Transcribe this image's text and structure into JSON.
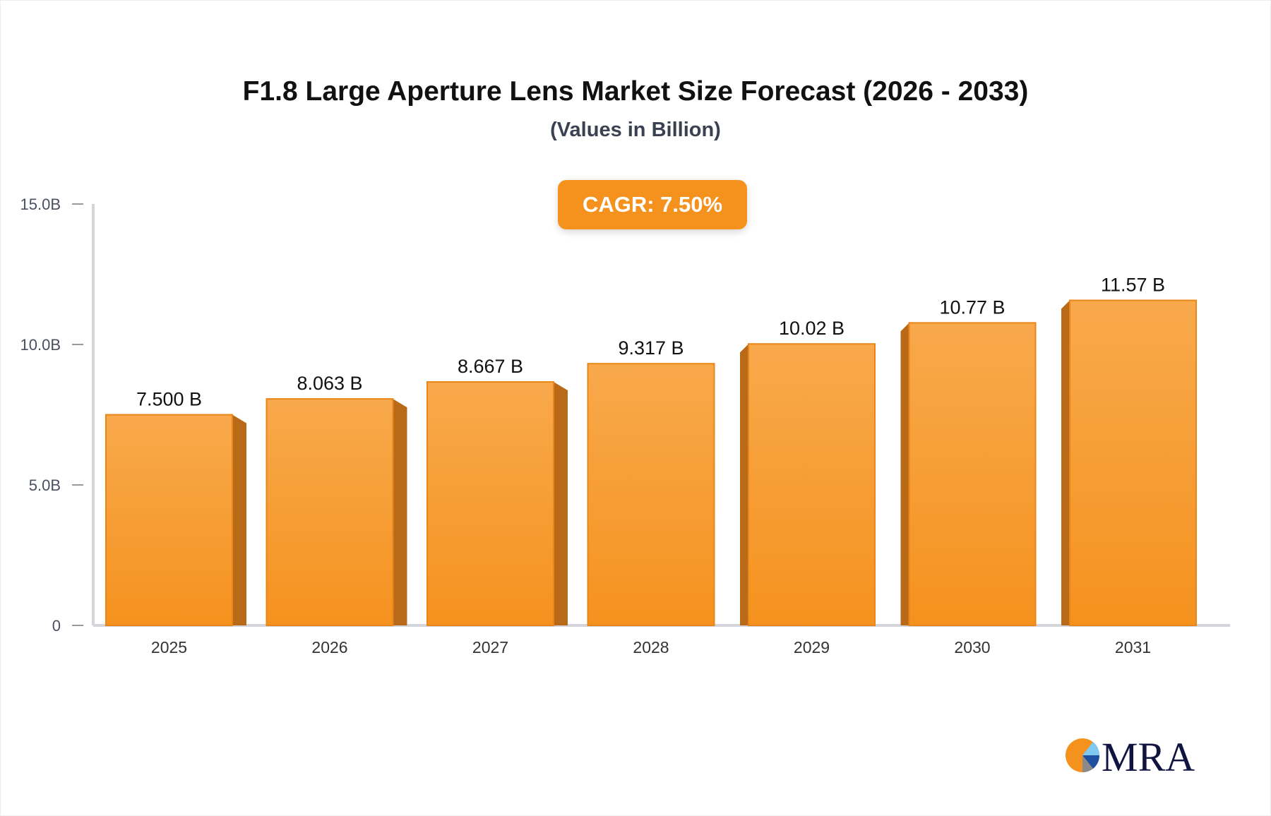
{
  "chart_data": {
    "type": "bar",
    "title": "F1.8 Large Aperture Lens Market Size Forecast (2026 - 2033)",
    "subtitle": "(Values in Billion)",
    "annotation": "CAGR: 7.50%",
    "categories": [
      "2025",
      "2026",
      "2027",
      "2028",
      "2029",
      "2030",
      "2031"
    ],
    "values": [
      7.5,
      8.063,
      8.667,
      9.317,
      10.02,
      10.77,
      11.57
    ],
    "data_labels": [
      "7.500 B",
      "8.063 B",
      "8.667 B",
      "9.317 B",
      "10.02 B",
      "10.77 B",
      "11.57 B"
    ],
    "yticks": [
      0,
      5,
      10,
      15
    ],
    "ytick_labels": [
      "0",
      "5.0B",
      "10.0B",
      "15.0B"
    ],
    "ylim": [
      0,
      15
    ],
    "xlabel": "",
    "ylabel": "",
    "grid": false,
    "colors": {
      "bar_top": "#f8a94c",
      "bar_bottom": "#f5921e",
      "bar_side": "#b86a18",
      "badge": "#f5921e"
    }
  },
  "logo": {
    "text": "MRA"
  }
}
